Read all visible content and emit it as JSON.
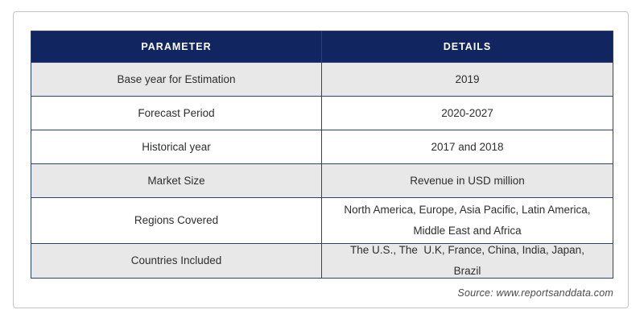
{
  "colors": {
    "header_bg": "#112560",
    "header_text": "#ffffff",
    "row_shaded_bg": "#e8e8e8",
    "row_plain_bg": "#ffffff",
    "cell_border": "#2e4270",
    "frame_border": "#c4c4c4",
    "body_text": "#2e2e2e",
    "source_text": "#4a4a4a"
  },
  "table": {
    "headers": [
      "PARAMETER",
      "DETAILS"
    ],
    "rows": [
      {
        "parameter": "Base year for Estimation",
        "details": "2019"
      },
      {
        "parameter": "Forecast Period",
        "details": "2020-2027"
      },
      {
        "parameter": "Historical year",
        "details": "2017 and 2018"
      },
      {
        "parameter": "Market Size",
        "details": "Revenue in USD million"
      },
      {
        "parameter": "Regions Covered",
        "details": "North America, Europe, Asia Pacific, Latin America, Middle East and Africa"
      },
      {
        "parameter": "Countries Included",
        "details": "The U.S., The  U.K, France, China, India, Japan, Brazil"
      }
    ]
  },
  "footer": {
    "source": "Source: www.reportsanddata.com"
  }
}
